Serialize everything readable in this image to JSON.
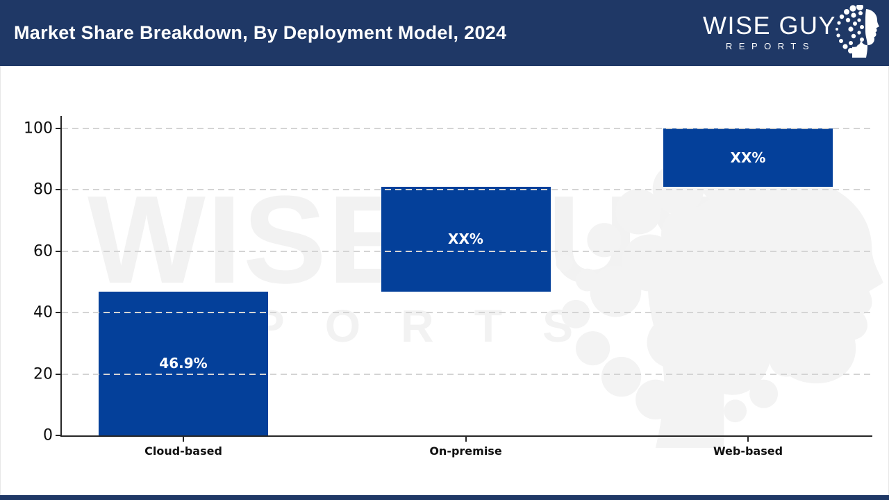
{
  "header": {
    "title": "Market Share Breakdown, By Deployment Model, 2024",
    "logo_wordmark": "WISE GUY",
    "logo_subtitle": "REPORTS"
  },
  "watermark": {
    "wordmark": "WISE GUY",
    "subtitle": "REPORTS"
  },
  "chart_data": {
    "type": "bar",
    "subtype": "floating-column-waterfall",
    "title": "Market Share Breakdown, By Deployment Model, 2024",
    "categories": [
      "Cloud-based",
      "On-premise",
      "Web-based"
    ],
    "series": [
      {
        "name": "Market share (%)",
        "segments": [
          {
            "from": 0,
            "to": 46.9,
            "label": "46.9%"
          },
          {
            "from": 46.9,
            "to": 81,
            "label": "XX%"
          },
          {
            "from": 81,
            "to": 100,
            "label": "XX%"
          }
        ]
      }
    ],
    "yticks": [
      0,
      20,
      40,
      60,
      80,
      100
    ],
    "ylim": [
      0,
      104
    ],
    "xlabel": "",
    "ylabel": "",
    "grid": "horizontal-dashed",
    "legend": "none",
    "colors": {
      "bar": "#04409a",
      "grid": "#d4d4d4",
      "axis": "#262626",
      "bar_label": "#ffffff",
      "header_bg": "#1f3866",
      "watermark": "#f2f2f2"
    }
  }
}
